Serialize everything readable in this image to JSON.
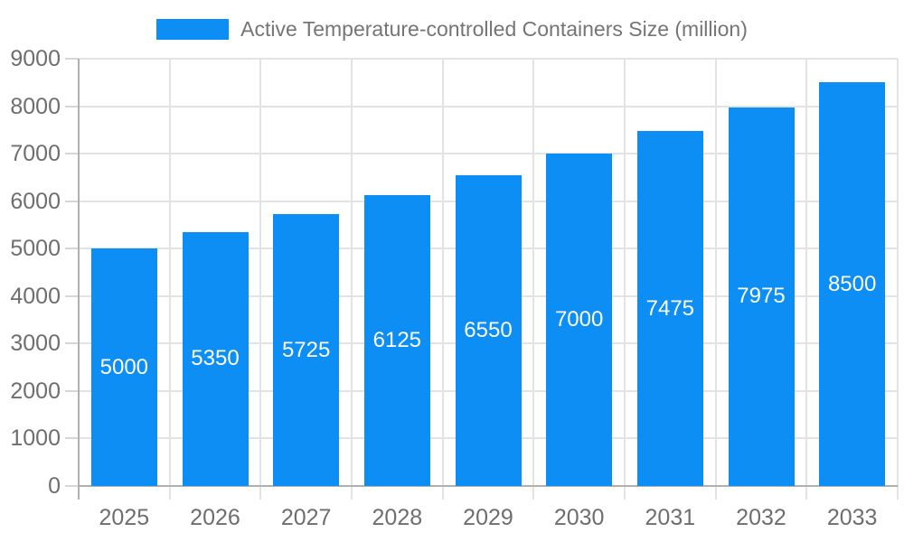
{
  "chart_data": {
    "type": "bar",
    "title": "Active Temperature-controlled Containers Size (million)",
    "categories": [
      "2025",
      "2026",
      "2027",
      "2028",
      "2029",
      "2030",
      "2031",
      "2032",
      "2033"
    ],
    "values": [
      5000,
      5350,
      5725,
      6125,
      6550,
      7000,
      7475,
      7975,
      8500
    ],
    "series_name": "Active Temperature-controlled Containers Size (million)",
    "xlabel": "",
    "ylabel": "",
    "ylim": [
      0,
      9000
    ],
    "ytick_step": 1000,
    "ytick_labels": [
      "0",
      "1000",
      "2000",
      "3000",
      "4000",
      "5000",
      "6000",
      "7000",
      "8000",
      "9000"
    ],
    "grid": true,
    "legend_position": "top",
    "bar_label_position": "inside-center"
  },
  "style": {
    "bar_color": "#0d8ef4",
    "bar_label_color": "#ffffff",
    "axis_line_color": "#b0b0b0",
    "grid_color": "#e3e3e3",
    "tick_color": "#d6d6d6",
    "axis_text_color": "#6e6e6e",
    "legend_text_color": "#757575",
    "background": "#ffffff"
  }
}
